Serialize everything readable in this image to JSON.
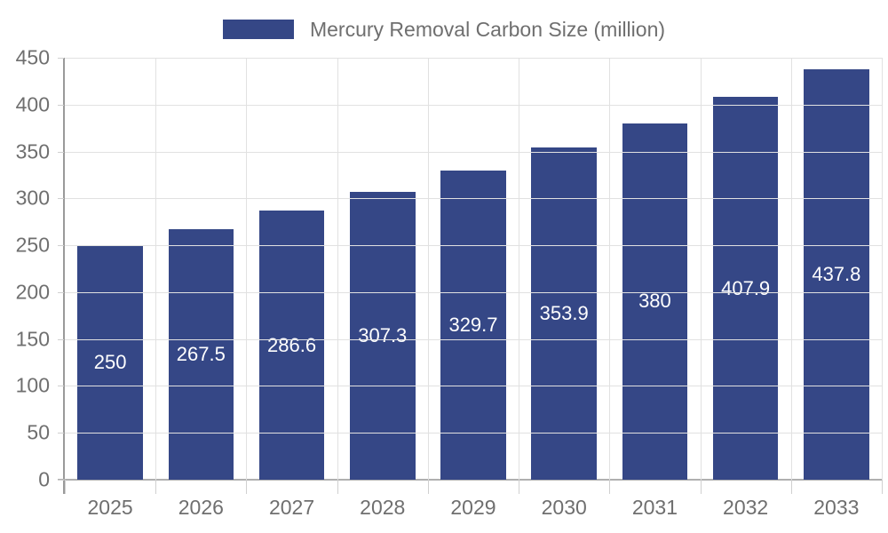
{
  "legend": {
    "label": "Mercury Removal Carbon Size (million)"
  },
  "colors": {
    "bar": "#354786",
    "grid": "#e1e1e1",
    "axis_y": "#9a9a9a",
    "axis_x": "#b0b0b0",
    "tick": "#d0d0d0",
    "text": "#6f6f6f",
    "value_label": "#ffffff"
  },
  "chart_data": {
    "type": "bar",
    "title": "Mercury Removal Carbon Size (million)",
    "categories": [
      "2025",
      "2026",
      "2027",
      "2028",
      "2029",
      "2030",
      "2031",
      "2032",
      "2033"
    ],
    "values": [
      250,
      267.5,
      286.6,
      307.3,
      329.7,
      353.9,
      380,
      407.9,
      437.8
    ],
    "xlabel": "",
    "ylabel": "",
    "ylim": [
      0,
      450
    ],
    "ytick_step": 50,
    "ytick_labels": [
      "0",
      "50",
      "100",
      "150",
      "200",
      "250",
      "300",
      "350",
      "400",
      "450"
    ],
    "grid": true,
    "legend_position": "top",
    "bar_label_position": "center"
  }
}
